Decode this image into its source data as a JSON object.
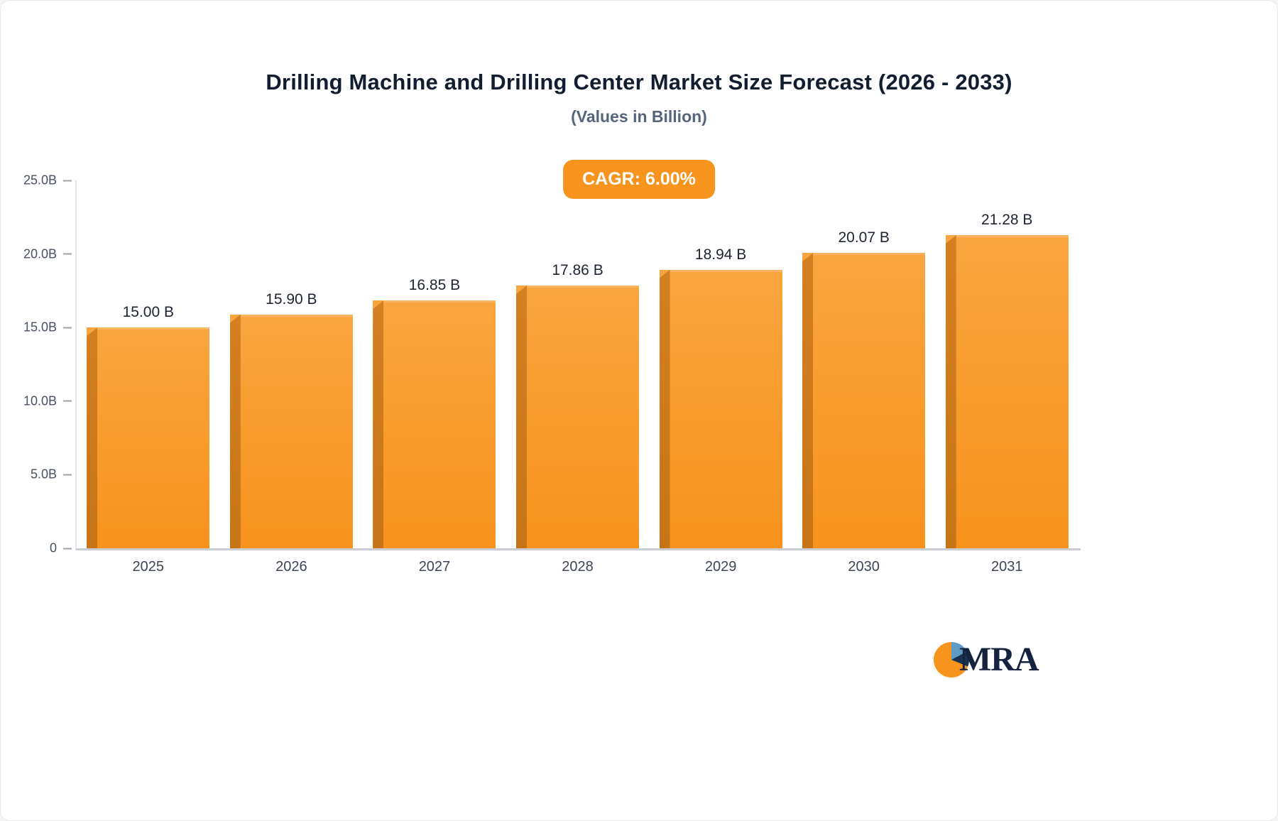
{
  "page": {
    "title": "Drilling Machine and Drilling Center Market Size Forecast (2026 - 2033)",
    "subtitle": "(Values in Billion)",
    "cagr_label": "CAGR: 6.00%"
  },
  "logo": {
    "text": "MRA",
    "icon": "pie-logo-icon",
    "accent_orange": "#f7941e",
    "accent_navy": "#16324f",
    "accent_lightblue": "#5e9bc4"
  },
  "chart_data": {
    "type": "bar",
    "title": "Drilling Machine and Drilling Center Market Size Forecast (2026 - 2033)",
    "subtitle": "(Values in Billion)",
    "annotation": "CAGR: 6.00%",
    "categories": [
      "2025",
      "2026",
      "2027",
      "2028",
      "2029",
      "2030",
      "2031"
    ],
    "values": [
      15.0,
      15.9,
      16.85,
      17.86,
      18.94,
      20.07,
      21.28
    ],
    "value_labels": [
      "15.00 B",
      "15.90 B",
      "16.85 B",
      "17.86 B",
      "18.94 B",
      "20.07 B",
      "21.28 B"
    ],
    "xlabel": "",
    "ylabel": "",
    "ylim": [
      0,
      25
    ],
    "yticks": [
      {
        "value": 25,
        "label": "25.0B"
      },
      {
        "value": 20,
        "label": "20.0B"
      },
      {
        "value": 15,
        "label": "15.0B"
      },
      {
        "value": 10,
        "label": "10.0B"
      },
      {
        "value": 5,
        "label": "5.0B"
      },
      {
        "value": 0,
        "label": "0"
      }
    ],
    "grid": false,
    "legend": false,
    "bar_color": "#f7941e",
    "bar_side_color": "#c77417",
    "label_color": "#1c2430",
    "axis_color": "#c9cdd3"
  }
}
